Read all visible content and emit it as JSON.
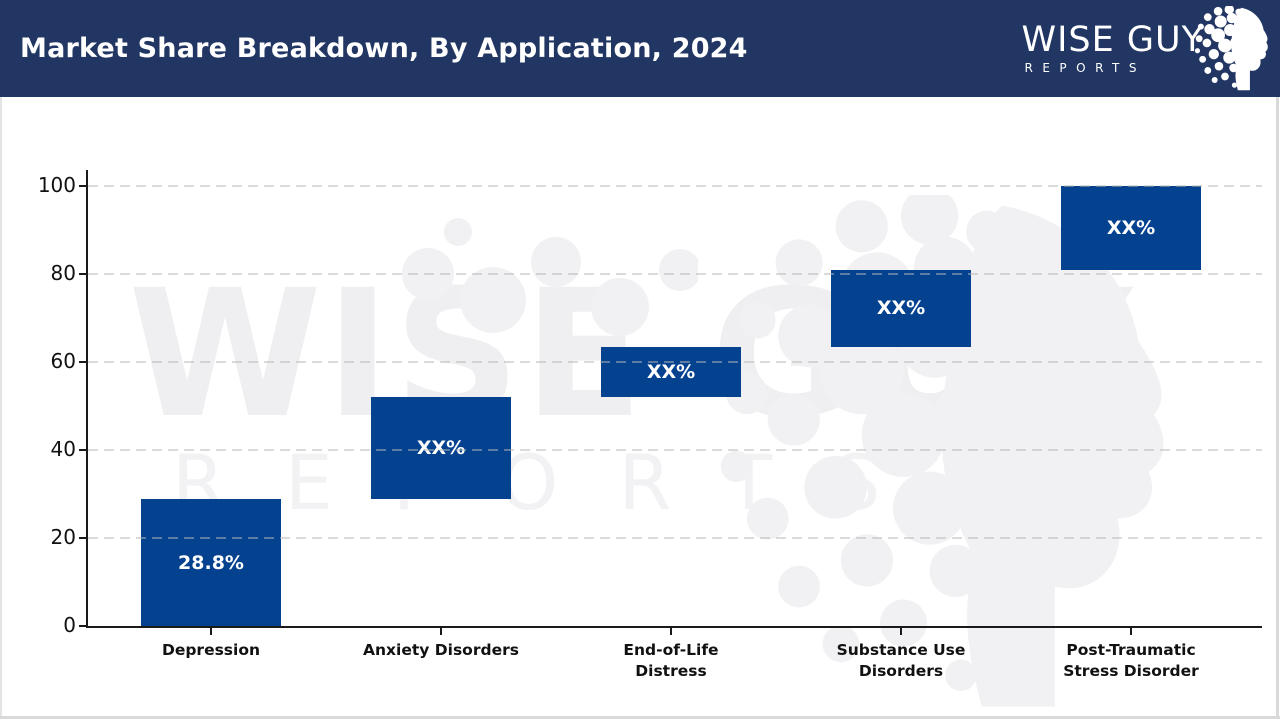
{
  "header": {
    "title": "Market Share Breakdown, By Application, 2024",
    "logo": {
      "line1": "WISE GUY",
      "line2": "REPORTS"
    }
  },
  "watermark": {
    "line1": "WISE GUY",
    "line2": "REPORTS"
  },
  "chart_data": {
    "type": "bar",
    "subtype": "waterfall",
    "title": "Market Share Breakdown, By Application, 2024",
    "categories": [
      "Depression",
      "Anxiety Disorders",
      "End-of-Life Distress",
      "Substance Use Disorders",
      "Post-Traumatic Stress Disorder"
    ],
    "x_tick_labels": [
      "Depression",
      "Anxiety Disorders",
      "End-of-Life\nDistress",
      "Substance Use\nDisorders",
      "Post-Traumatic\nStress Disorder"
    ],
    "segments": [
      {
        "label": "28.8%",
        "start": 0,
        "end": 28.8
      },
      {
        "label": "XX%",
        "start": 28.8,
        "end": 52
      },
      {
        "label": "XX%",
        "start": 52,
        "end": 63.5
      },
      {
        "label": "XX%",
        "start": 63.5,
        "end": 81
      },
      {
        "label": "XX%",
        "start": 81,
        "end": 100
      }
    ],
    "ylim": [
      0,
      100
    ],
    "yticks": [
      "0",
      "20",
      "40",
      "60",
      "80",
      "100"
    ],
    "grid": "horizontal dashed lines at every 20",
    "legend": "none",
    "bar_color": "#04418f",
    "bar_label_color": "#ffffff"
  },
  "colors": {
    "header_bg": "#213663",
    "bar": "#04418f",
    "grid": "#dadada",
    "axis": "#1a1a1a",
    "watermark": "#efeff1"
  }
}
